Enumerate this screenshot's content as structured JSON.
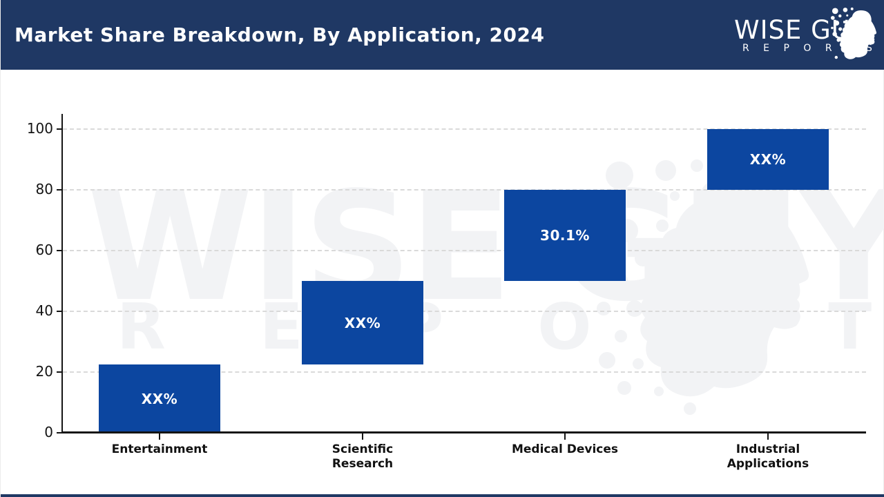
{
  "header": {
    "title": "Market Share Breakdown, By Application, 2024",
    "logo": {
      "brand": "WISE GUY",
      "sub": "R E P O R T S"
    }
  },
  "watermark": {
    "brand": "WISE GUY",
    "sub": "R E P O R T S"
  },
  "colors": {
    "header_bg": "#1f3864",
    "bar": "#0c46a0",
    "grid": "#d9d9d9",
    "axis": "#141414",
    "watermark": "#f2f3f5",
    "bar_label": "#ffffff"
  },
  "chart_data": {
    "type": "bar",
    "subtype": "waterfall",
    "title": "Market Share Breakdown, By Application, 2024",
    "categories": [
      "Entertainment",
      "Scientific Research",
      "Medical Devices",
      "Industrial Applications"
    ],
    "categories_display": [
      [
        "Entertainment"
      ],
      [
        "Scientific",
        "Research"
      ],
      [
        "Medical Devices"
      ],
      [
        "Industrial",
        "Applications"
      ]
    ],
    "bars": [
      {
        "category": "Entertainment",
        "start": 0,
        "end": 22.5,
        "label": "XX%"
      },
      {
        "category": "Scientific Research",
        "start": 22.5,
        "end": 50,
        "label": "XX%"
      },
      {
        "category": "Medical Devices",
        "start": 50,
        "end": 80.1,
        "label": "30.1%"
      },
      {
        "category": "Industrial Applications",
        "start": 80.1,
        "end": 100,
        "label": "XX%"
      }
    ],
    "values": [
      22.5,
      27.5,
      30.1,
      19.9
    ],
    "xlabel": "",
    "ylabel": "",
    "ylim": [
      0,
      105
    ],
    "yticks": [
      0,
      20,
      40,
      60,
      80,
      100
    ],
    "grid": "horizontal dashed",
    "legend": "none"
  }
}
